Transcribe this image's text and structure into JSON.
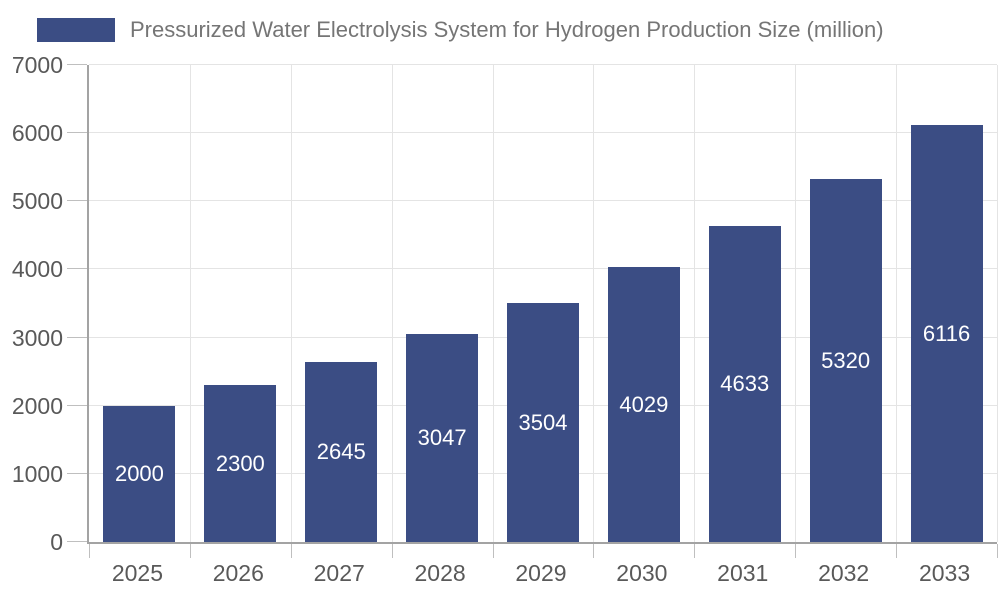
{
  "legend": {
    "label": "Pressurized Water Electrolysis System for Hydrogen Production Size (million)"
  },
  "chart_data": {
    "type": "bar",
    "title": "Pressurized Water Electrolysis System for Hydrogen Production Size (million)",
    "categories": [
      "2025",
      "2026",
      "2027",
      "2028",
      "2029",
      "2030",
      "2031",
      "2032",
      "2033"
    ],
    "values": [
      2000,
      2300,
      2645,
      3047,
      3504,
      4029,
      4633,
      5320,
      6116
    ],
    "xlabel": "",
    "ylabel": "",
    "ylim": [
      0,
      7000
    ],
    "ytick_step": 1000,
    "ytick_labels": [
      "0",
      "1000",
      "2000",
      "3000",
      "4000",
      "5000",
      "6000",
      "7000"
    ],
    "grid": true,
    "legend_position": "top-left",
    "value_labels": "inside-center",
    "colors": {
      "bar": "#3b4d84",
      "value_label": "#ffffff",
      "grid": "#e4e4e4",
      "axis": "#a3a3a3",
      "tick": "#bfbfbf",
      "tick_label": "#595959",
      "title": "#757575",
      "background": "#ffffff"
    }
  }
}
